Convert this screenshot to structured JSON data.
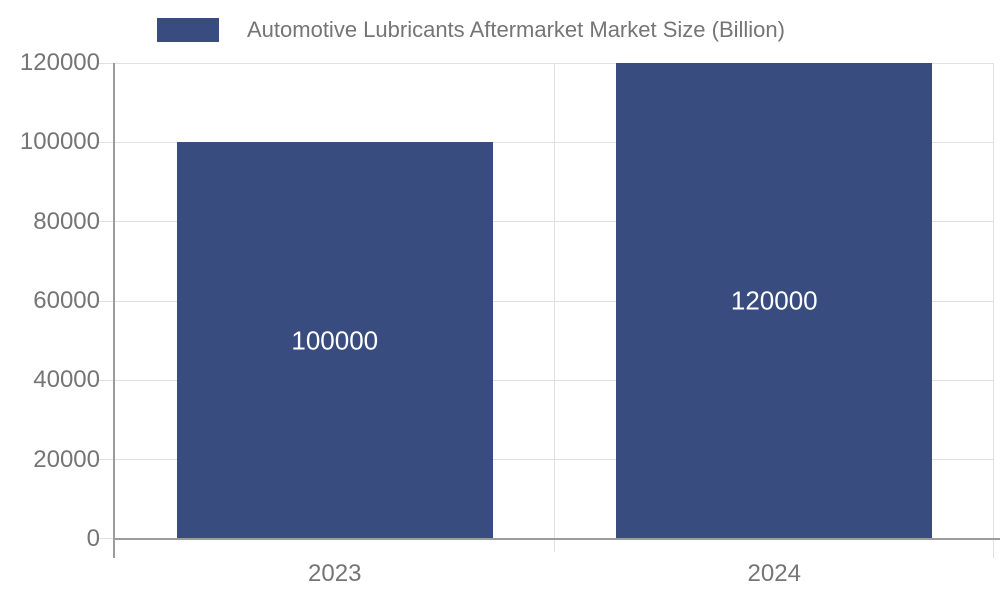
{
  "chart_data": {
    "type": "bar",
    "title": "Automotive Lubricants Aftermarket Market Size (Billion)",
    "legend": {
      "position": "top",
      "label": "Automotive Lubricants Aftermarket Market Size (Billion)"
    },
    "categories": [
      "2023",
      "2024"
    ],
    "series": [
      {
        "name": "Automotive Lubricants Aftermarket Market Size (Billion)",
        "values": [
          100000,
          120000
        ],
        "value_labels": [
          "100000",
          "120000"
        ]
      }
    ],
    "xlabel": "",
    "ylabel": "",
    "ylim": [
      0,
      120000
    ],
    "y_ticks": [
      0,
      20000,
      40000,
      60000,
      80000,
      100000,
      120000
    ],
    "y_tick_labels": [
      "0",
      "20000",
      "40000",
      "60000",
      "80000",
      "100000",
      "120000"
    ],
    "grid": true,
    "colors": {
      "bar": "#394C80",
      "text": "#757575",
      "grid": "#e0e0e0",
      "axis": "#9c9c9c",
      "bar_label": "#ffffff",
      "background": "#ffffff"
    }
  }
}
